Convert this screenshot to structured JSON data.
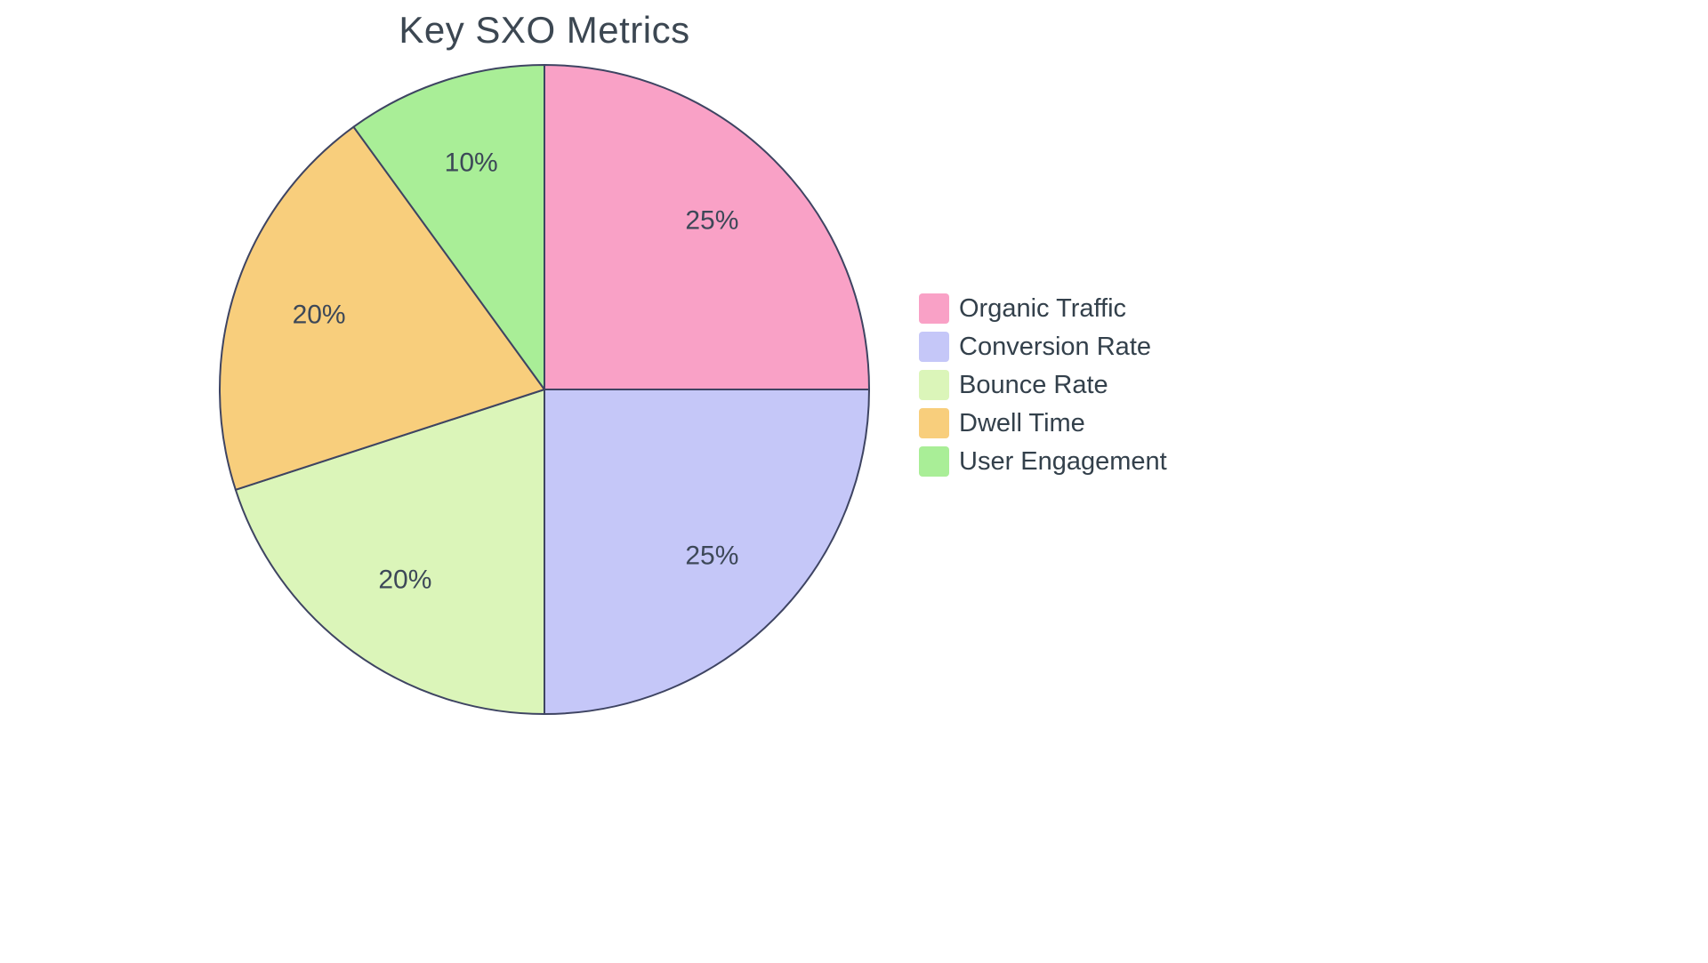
{
  "title": "Key SXO Metrics",
  "chart_data": {
    "type": "pie",
    "title": "Key SXO Metrics",
    "labels": [
      "Organic Traffic",
      "Conversion Rate",
      "Bounce Rate",
      "Dwell Time",
      "User Engagement"
    ],
    "values": [
      25,
      25,
      20,
      20,
      10
    ],
    "percent_labels": [
      "25%",
      "25%",
      "20%",
      "20%",
      "10%"
    ],
    "colors": [
      "#F9A1C6",
      "#C5C7F8",
      "#DBF5B9",
      "#F8CE7C",
      "#A9EE97"
    ],
    "stroke_color": "#3E4462",
    "label_color": "#3D4858",
    "start_angle": "top",
    "direction": "clockwise",
    "legend_position": "right",
    "legend": [
      "Organic Traffic",
      "Conversion Rate",
      "Bounce Rate",
      "Dwell Time",
      "User Engagement"
    ]
  }
}
